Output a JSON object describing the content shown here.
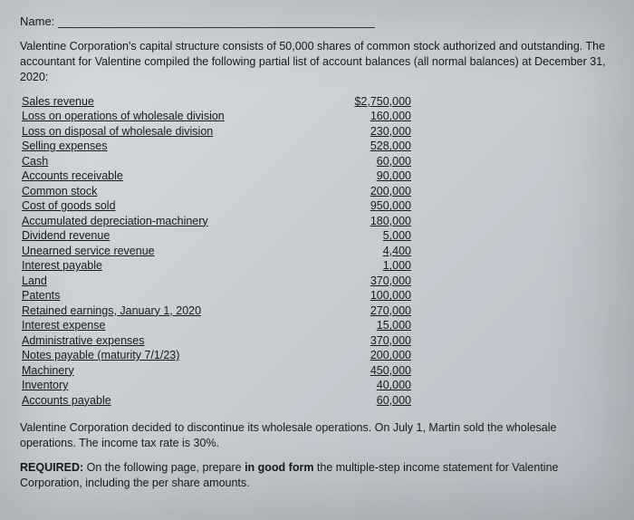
{
  "name_label": "Name:",
  "intro": "Valentine Corporation's capital structure consists of 50,000 shares of common stock authorized and outstanding.  The accountant for Valentine compiled the following partial list of account balances (all normal balances) at December 31, 2020:",
  "accounts": [
    {
      "label": "Sales revenue",
      "value": "$2,750,000"
    },
    {
      "label": "Loss on operations of wholesale division",
      "value": "160,000"
    },
    {
      "label": "Loss on disposal of wholesale division",
      "value": "230,000"
    },
    {
      "label": "Selling expenses",
      "value": "528,000"
    },
    {
      "label": "Cash",
      "value": "60,000"
    },
    {
      "label": "Accounts receivable",
      "value": "90,000"
    },
    {
      "label": "Common stock",
      "value": "200,000"
    },
    {
      "label": "Cost of goods sold",
      "value": "950,000"
    },
    {
      "label": "Accumulated depreciation-machinery",
      "value": "180,000"
    },
    {
      "label": "Dividend revenue",
      "value": "5,000"
    },
    {
      "label": "Unearned service revenue",
      "value": "4,400"
    },
    {
      "label": "Interest payable",
      "value": "1,000"
    },
    {
      "label": "Land",
      "value": "370,000"
    },
    {
      "label": "Patents",
      "value": "100,000"
    },
    {
      "label": "Retained earnings, January 1, 2020",
      "value": "270,000"
    },
    {
      "label": "Interest expense",
      "value": "15,000"
    },
    {
      "label": "Administrative expenses",
      "value": "370,000"
    },
    {
      "label": "Notes payable (maturity 7/1/23)",
      "value": "200,000"
    },
    {
      "label": "Machinery",
      "value": "450,000"
    },
    {
      "label": "Inventory",
      "value": "40,000"
    },
    {
      "label": "Accounts payable",
      "value": "60,000"
    }
  ],
  "para2": "Valentine Corporation decided to discontinue its wholesale operations.  On July 1, Martin sold the wholesale operations. The income tax rate is 30%.",
  "required_label": "REQUIRED:",
  "required_text": "  On the following page, prepare in good form the multiple-step income statement for Valentine Corporation, including the per share amounts.",
  "colors": {
    "text": "#1a1a1a",
    "bg_light": "#d8dce0",
    "bg_dark": "#b8bec4",
    "underline": "#333333"
  },
  "font_sizes": {
    "body": 12.5,
    "name": 13
  }
}
